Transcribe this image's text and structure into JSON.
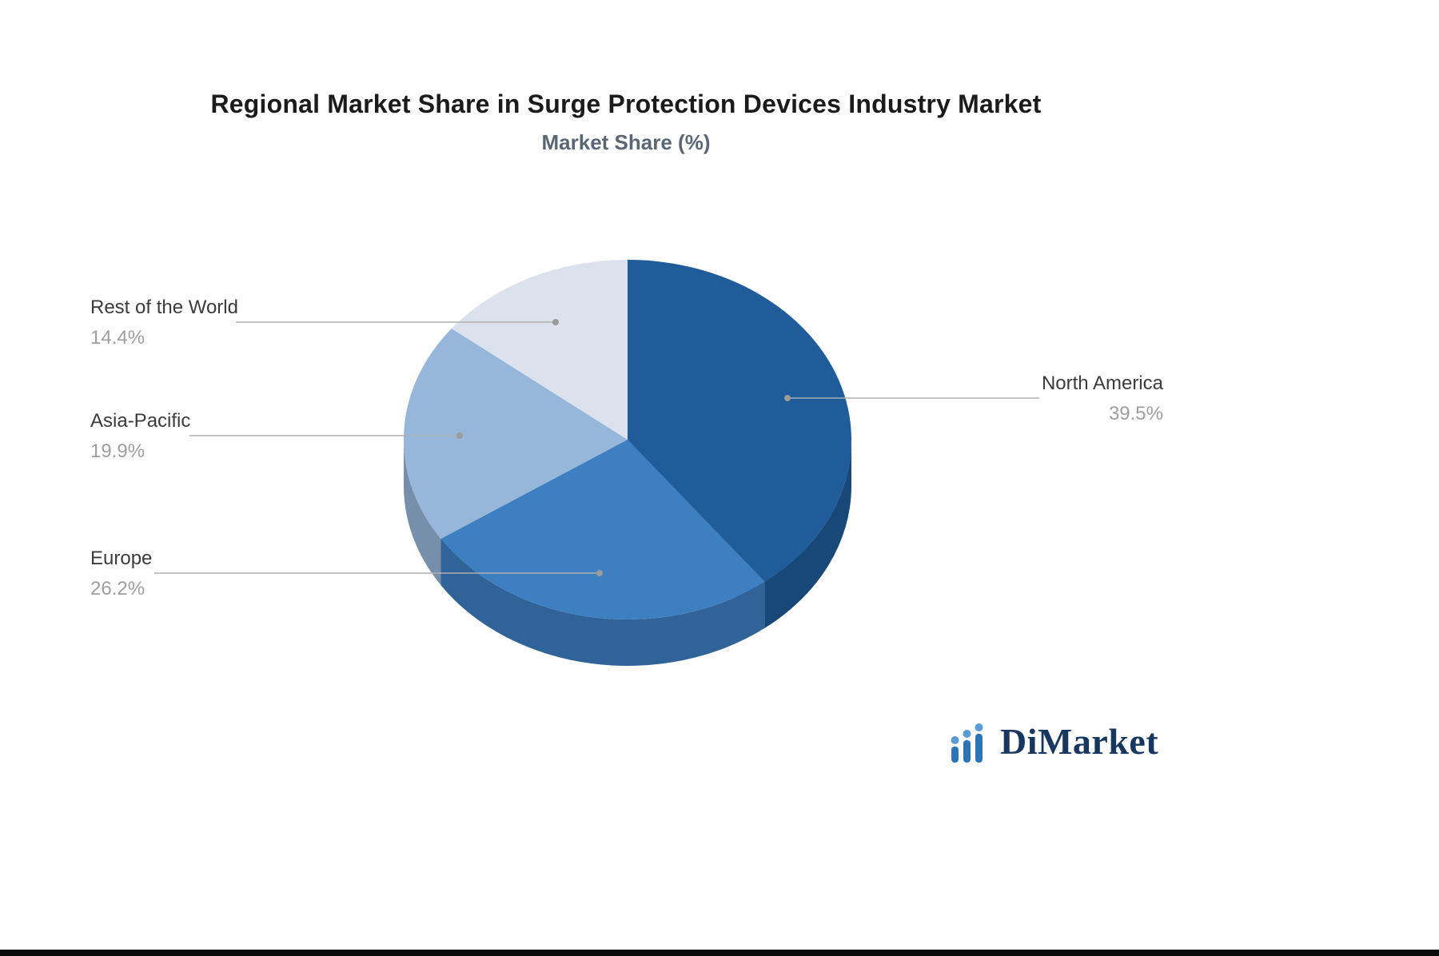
{
  "page": {
    "title": "Regional Market Share in Surge Protection Devices Industry Market",
    "subtitle": "Market Share (%)"
  },
  "chart_data": {
    "type": "pie",
    "title": "Regional Market Share in Surge Protection Devices Industry Market",
    "subtitle": "Market Share (%)",
    "unit": "%",
    "total": 100,
    "direction": "clockwise",
    "start_angle_deg": 0,
    "style": "3d-pie",
    "legend_position": "none",
    "labelling": "leader-lines",
    "slices": [
      {
        "label": "North America",
        "value": 39.5,
        "display": "39.5%",
        "color": "#1F5C99"
      },
      {
        "label": "Europe",
        "value": 26.2,
        "display": "26.2%",
        "color": "#3E7FC2"
      },
      {
        "label": "Asia-Pacific",
        "value": 19.9,
        "display": "19.9%",
        "color": "#97B7DA"
      },
      {
        "label": "Rest of the World",
        "value": 14.4,
        "display": "14.4%",
        "color": "#DBE2EE"
      }
    ]
  },
  "branding": {
    "logo_text": "DiMarket",
    "logo_icon": "bar-chart-icon"
  },
  "colors": {
    "title_text": "#1B1B1B",
    "subtitle_text": "#5A6673",
    "label_text": "#3B3B3B",
    "percent_text": "#9E9E9E",
    "leader_line": "#AFAFAF",
    "leader_dot": "#9B9B9B",
    "background": "#FFFFFF",
    "footer_bar": "#0B0B0B",
    "logo_text_color": "#17375E",
    "logo_icon_color": "#2E75B6",
    "logo_icon_dot_color": "#5B9BD5"
  }
}
